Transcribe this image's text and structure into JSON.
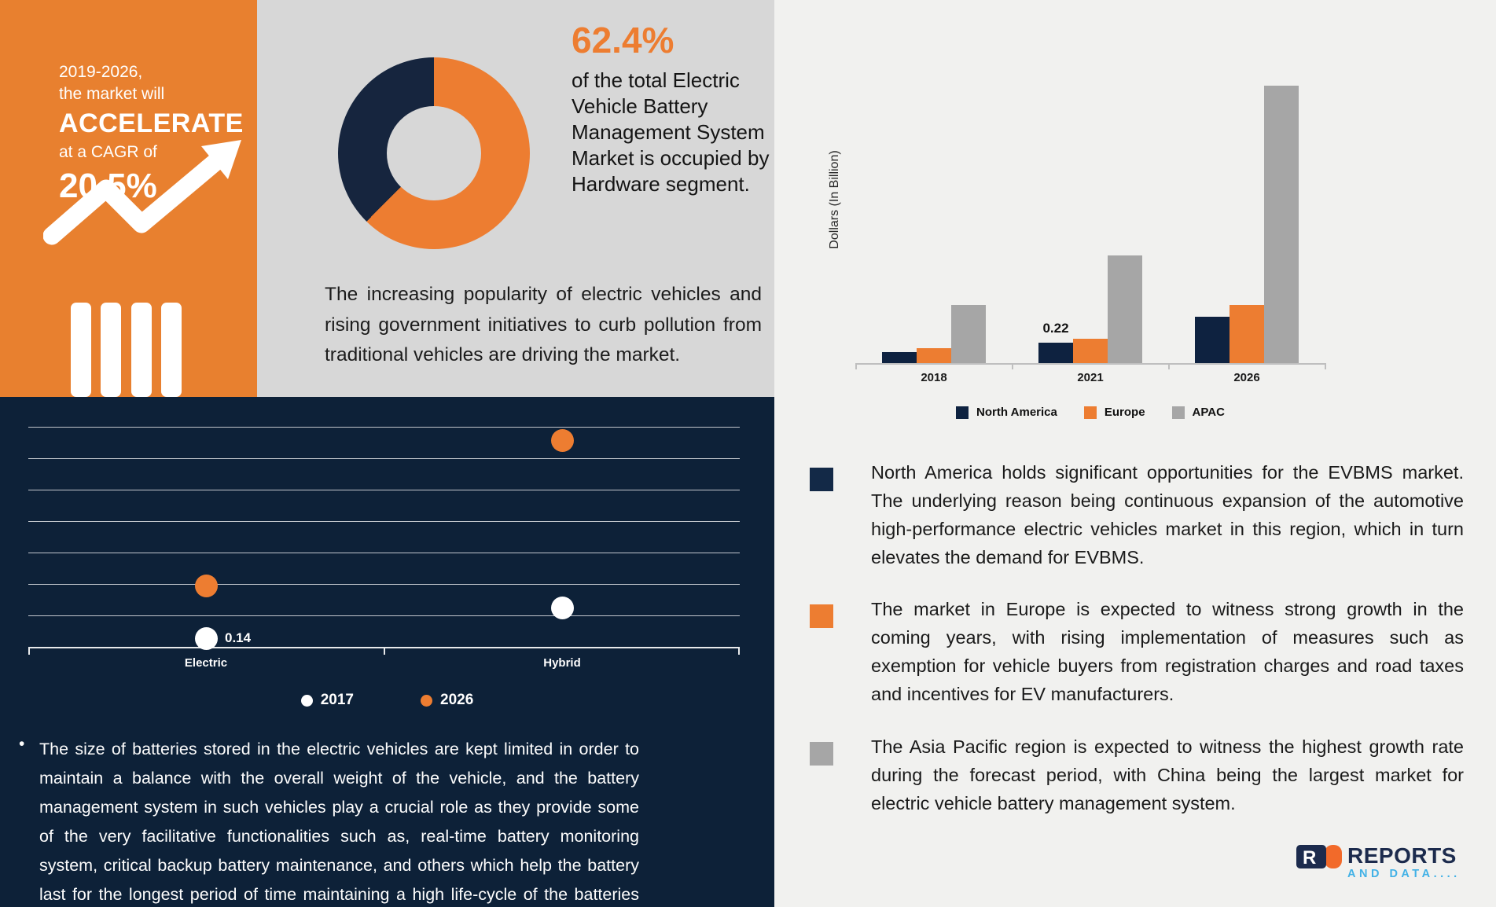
{
  "colors": {
    "orange": "#ED7D31",
    "orange_panel": "#E8802F",
    "navy": "#0E2240",
    "navy_panel": "#0D2138",
    "gray_panel": "#D7D7D7",
    "bar_gray": "#A6A6A6",
    "background": "#F1F1EF"
  },
  "promo": {
    "period": "2019-2026,",
    "line2": "the market will",
    "emphasis": "ACCELERATE",
    "line4": "at a CAGR of",
    "cagr": "20.5%"
  },
  "hardware": {
    "percent": "62.4%",
    "headline": "of the total Electric Vehicle Battery Management System Market is occupied by Hardware segment.",
    "body": "The increasing popularity of electric vehicles and rising government initiatives to curb pollution from traditional vehicles are driving the market."
  },
  "chart_data": [
    {
      "id": "hardware-donut",
      "type": "pie",
      "slices": [
        {
          "label": "Hardware segment",
          "value": 62.4,
          "color": "#ED7D31"
        },
        {
          "label": "Other segments",
          "value": 37.6,
          "color": "#16253E"
        }
      ],
      "center_hole": true
    },
    {
      "id": "regional-bars",
      "type": "bar",
      "title": "",
      "ylabel": "Dollars (In Billion)",
      "xlabel": "",
      "categories": [
        "2018",
        "2021",
        "2026"
      ],
      "series": [
        {
          "name": "North America",
          "color": "#0E2240",
          "values": [
            0.12,
            0.22,
            0.5
          ]
        },
        {
          "name": "Europe",
          "color": "#ED7D31",
          "values": [
            0.16,
            0.26,
            0.63
          ]
        },
        {
          "name": "APAC",
          "color": "#A6A6A6",
          "values": [
            0.63,
            1.16,
            2.99
          ]
        }
      ],
      "data_labels": [
        {
          "category": "2021",
          "series": "North America",
          "text": "0.22"
        }
      ],
      "legend_position": "bottom",
      "grid": false,
      "note": "Only the 0.22 value is labeled in the figure; other values estimated from bar heights."
    },
    {
      "id": "vehicle-dot-plot",
      "type": "scatter",
      "categories": [
        "Electric",
        "Hybrid"
      ],
      "series": [
        {
          "name": "2017",
          "color": "#FFFFFF",
          "values": [
            0.14,
            0.69
          ]
        },
        {
          "name": "2026",
          "color": "#ED7D31",
          "values": [
            1.09,
            3.67
          ]
        }
      ],
      "data_labels": [
        {
          "category": "Electric",
          "series": "2017",
          "text": "0.14"
        }
      ],
      "legend_position": "bottom",
      "grid": true,
      "note": "Only the 0.14 value is labeled in the figure; other values estimated from dot positions vs gridlines."
    }
  ],
  "insights": [
    {
      "color": "#132947",
      "text": "North America holds significant opportunities for the EVBMS market. The underlying reason being continuous expansion of the automotive high-performance electric vehicles market in this region, which in turn elevates the demand for EVBMS."
    },
    {
      "color": "#ED7D31",
      "text": "The market in Europe is expected to witness strong growth in the coming years, with rising implementation of measures such as exemption for vehicle buyers from registration charges and road taxes and incentives for EV manufacturers."
    },
    {
      "color": "#A6A6A6",
      "text": "The Asia Pacific region is expected to witness the highest growth rate during the forecast period, with China being the largest market for electric vehicle battery management system."
    }
  ],
  "battery_note": "The size of batteries stored in the electric vehicles are kept limited in order to maintain a balance with the overall weight of the vehicle, and the battery management system in such vehicles play a crucial role as they provide some of the very facilitative functionalities such as, real-time battery monitoring system, critical backup battery maintenance, and others which help the battery last for the longest period of time maintaining a high life-cycle of the batteries cells",
  "logo": {
    "mark_letter": "R",
    "name": "REPORTS",
    "tagline": "AND DATA",
    "dots": "...."
  }
}
